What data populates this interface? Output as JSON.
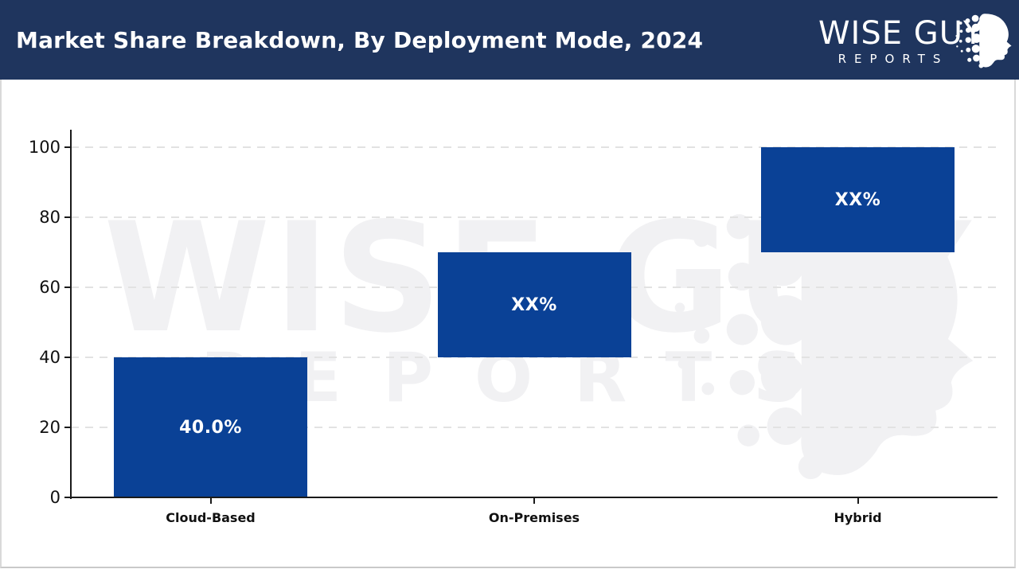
{
  "header": {
    "title": "Market Share Breakdown, By Deployment Mode, 2024",
    "logo": {
      "line1": "WISE GUY",
      "line2": "REPORTS",
      "icon": "face-profile-dots-icon"
    }
  },
  "watermark": {
    "line1": "WISE GUY",
    "line2": "REPORTS",
    "icon": "face-profile-dots-icon"
  },
  "chart_data": {
    "type": "bar",
    "variant": "floating-waterfall",
    "title": "Market Share Breakdown, By Deployment Mode, 2024",
    "categories": [
      "Cloud-Based",
      "On-Premises",
      "Hybrid"
    ],
    "segments": [
      {
        "category": "Cloud-Based",
        "from": 0,
        "to": 40,
        "label": "40.0%"
      },
      {
        "category": "On-Premises",
        "from": 40,
        "to": 70,
        "label": "XX%"
      },
      {
        "category": "Hybrid",
        "from": 70,
        "to": 100,
        "label": "XX%"
      }
    ],
    "y_ticks": [
      0,
      20,
      40,
      60,
      80,
      100
    ],
    "ylim": [
      0,
      105
    ],
    "xlabel": "",
    "ylabel": "",
    "grid": "horizontal-dashed",
    "legend": "none"
  },
  "colors": {
    "header_bg": "#1f355e",
    "bar": "#0a4196",
    "bar_label": "#ffffff",
    "grid": "#e2e2e2",
    "axis": "#1a1a1a",
    "watermark": "#f1f1f3",
    "page_border": "#c9c9c9"
  }
}
